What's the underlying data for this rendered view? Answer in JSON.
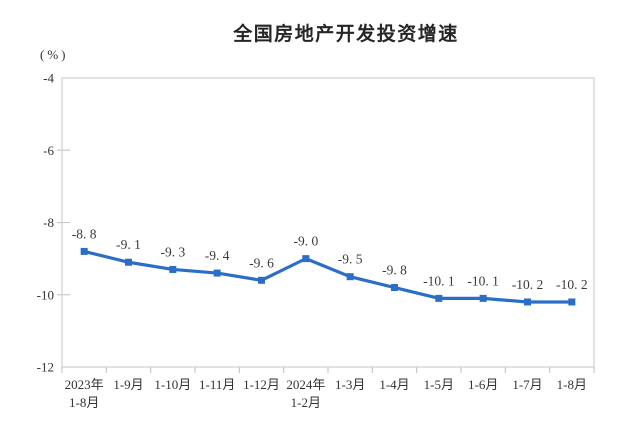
{
  "chart_data": {
    "type": "line",
    "title": "全国房地产开发投资增速",
    "unit_label": "(%)",
    "categories": [
      [
        "2023年",
        "1-8月"
      ],
      [
        "1-9月"
      ],
      [
        "1-10月"
      ],
      [
        "1-11月"
      ],
      [
        "1-12月"
      ],
      [
        "2024年",
        "1-2月"
      ],
      [
        "1-3月"
      ],
      [
        "1-4月"
      ],
      [
        "1-5月"
      ],
      [
        "1-6月"
      ],
      [
        "1-7月"
      ],
      [
        "1-8月"
      ]
    ],
    "series": [
      {
        "name": "全国房地产开发投资增速",
        "values": [
          -8.8,
          -9.1,
          -9.3,
          -9.4,
          -9.6,
          -9.0,
          -9.5,
          -9.8,
          -10.1,
          -10.1,
          -10.2,
          -10.2
        ]
      }
    ],
    "data_labels": [
      "-8. 8",
      "-9. 1",
      "-9. 3",
      "-9. 4",
      "-9. 6",
      "-9. 0",
      "-9. 5",
      "-9. 8",
      "-10. 1",
      "-10. 1",
      "-10. 2",
      "-10. 2"
    ],
    "ylim": [
      -12,
      -4
    ],
    "yticks": [
      -4,
      -6,
      -8,
      -10,
      -12
    ],
    "ytick_labels": [
      "-4",
      "-6",
      "-8",
      "-10",
      "-12"
    ],
    "grid": false,
    "legend": "none",
    "colors": {
      "line": "#2A6EC8",
      "axis": "#D9D9D9",
      "text": "#333333",
      "title": "#262626"
    }
  }
}
